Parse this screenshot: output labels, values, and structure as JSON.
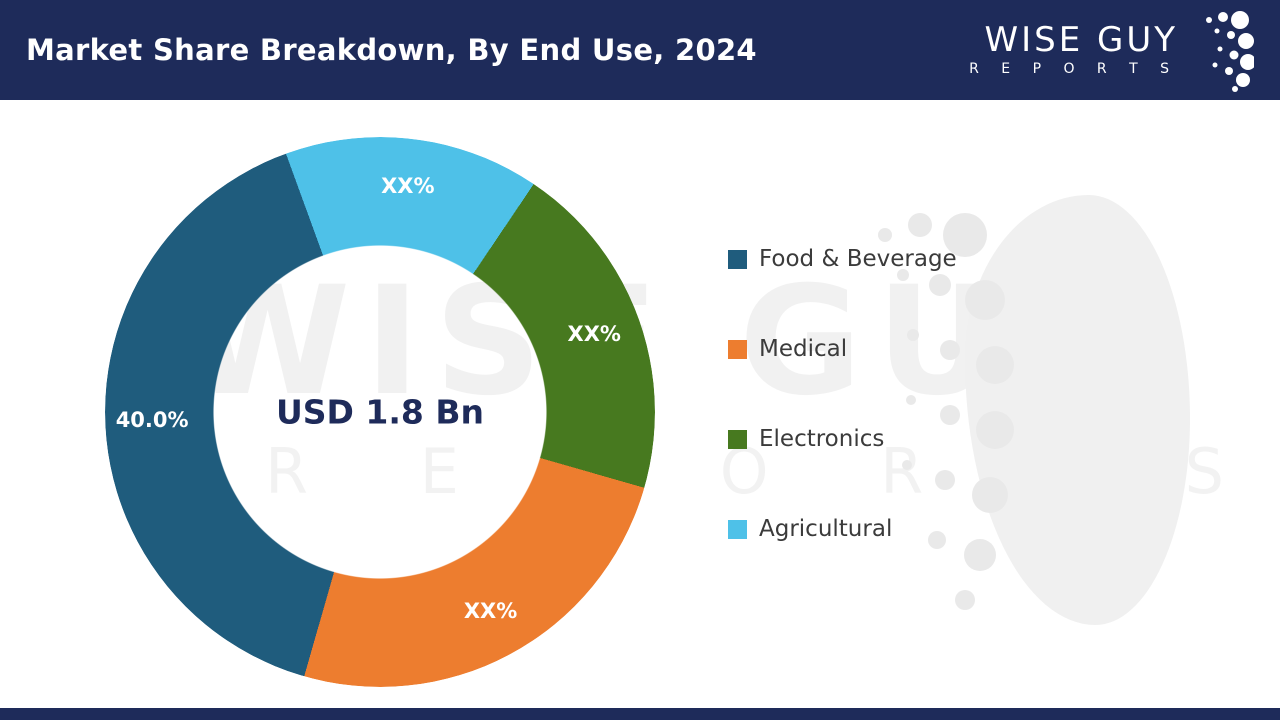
{
  "header": {
    "title": "Market Share Breakdown, By End Use, 2024",
    "logo": {
      "line1": "WISE GUY",
      "line2": "R E P O R T S"
    }
  },
  "watermark": {
    "line1": "WISE GUY",
    "line2": "R E P O R T S"
  },
  "chart_data": {
    "type": "pie",
    "subtype": "donut",
    "title": "Market Share Breakdown, By End Use, 2024",
    "center_label": "USD 1.8 Bn",
    "legend_position": "right",
    "start_angle_deg": -20,
    "direction": "clockwise",
    "draw_order": [
      3,
      2,
      1,
      0
    ],
    "label_radius_px": 228,
    "segments": [
      {
        "label": "Food & Beverage",
        "value_pct": 40,
        "display_label": "40.0%",
        "color": "#1f5c7d"
      },
      {
        "label": "Medical",
        "value_pct": 25,
        "display_label": "XX%",
        "color": "#ed7d2f"
      },
      {
        "label": "Electronics",
        "value_pct": 20,
        "display_label": "XX%",
        "color": "#47791f"
      },
      {
        "label": "Agricultural",
        "value_pct": 15,
        "display_label": "XX%",
        "color": "#4ec1e8"
      }
    ],
    "colors": {
      "header_bar": "#1e2b5a",
      "center_text": "#1e2b5a",
      "legend_text": "#3b3b3b"
    }
  }
}
